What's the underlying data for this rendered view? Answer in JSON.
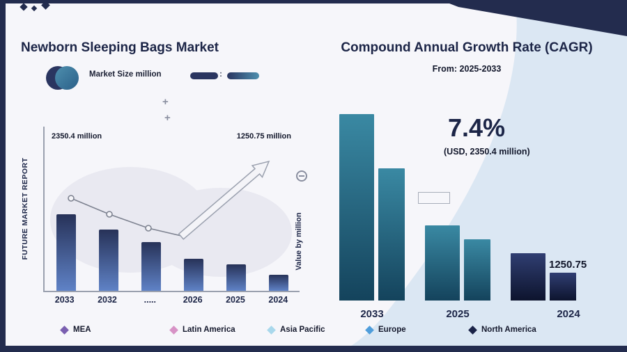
{
  "colors": {
    "navy": "#1c2547",
    "frame": "#232c4e",
    "teal_top": "#3a89a3",
    "teal_bottom": "#14435c",
    "navy_bar_top": "#303e72",
    "navy_bar_bottom": "#0d142e",
    "left_bar_top": "#273258",
    "left_bar_bottom": "#5f82c6",
    "swoosh": "#dbe7f3",
    "blob": "#e9e9f1"
  },
  "decor": {
    "plus": "+"
  },
  "left_panel": {
    "title": "Newborn Sleeping Bags Market",
    "market_size_label": "Market Size million",
    "pills_separator": ":",
    "value_left": "2350.4 million",
    "value_right": "1250.75 million",
    "y_axis_label": "FUTURE MARKET REPORT"
  },
  "right_panel": {
    "title": "Compound Annual Growth Rate (CAGR)",
    "subtitle": "From: 2025-2033",
    "cagr_value": "7.4%",
    "cagr_unit": "(USD, 2350.4 million)",
    "value_label": "1250.75",
    "y_axis_label": "Value by million"
  },
  "legend": {
    "items": [
      {
        "label": "MEA",
        "color": "#7a5fb0"
      },
      {
        "label": "Latin America",
        "color": "#d792c6"
      },
      {
        "label": "Asia Pacific",
        "color": "#a9d8ec"
      },
      {
        "label": "Europe",
        "color": "#4f9ddb"
      },
      {
        "label": "North America",
        "color": "#1b2348"
      }
    ]
  },
  "chart_data": [
    {
      "id": "market-size-by-year",
      "type": "bar",
      "title": "Newborn Sleeping Bags Market — Market Size million",
      "categories": [
        "2033",
        "2032",
        ".....",
        "2026",
        "2025",
        "2024"
      ],
      "values": [
        110,
        88,
        70,
        46,
        38,
        23
      ],
      "value_scale": "relative bar height in px (value axis unlabeled)",
      "annotations": [
        "2350.4 million (top-left)",
        "1250.75 million (top-right)"
      ],
      "ylabel": "FUTURE MARKET REPORT",
      "overlay": "trend line with circular markers descending from 2033 to 2026, then outlined block arrow rising to top-right",
      "legend_position": "none",
      "grid": false
    },
    {
      "id": "cagr-by-year",
      "type": "bar",
      "categories": [
        "2033",
        "2025",
        "2024"
      ],
      "series": [
        {
          "name": "series-a",
          "values": [
            268,
            108,
            68
          ]
        },
        {
          "name": "series-b",
          "values": [
            190,
            88,
            40
          ]
        }
      ],
      "value_scale": "relative bar height in px (value axis unlabeled)",
      "group_palette": [
        "teal",
        "teal",
        "navy"
      ],
      "ylabel": "Value by million",
      "annotations": [
        "1250.75 at 2024"
      ],
      "legend_position": "none",
      "grid": false
    }
  ]
}
